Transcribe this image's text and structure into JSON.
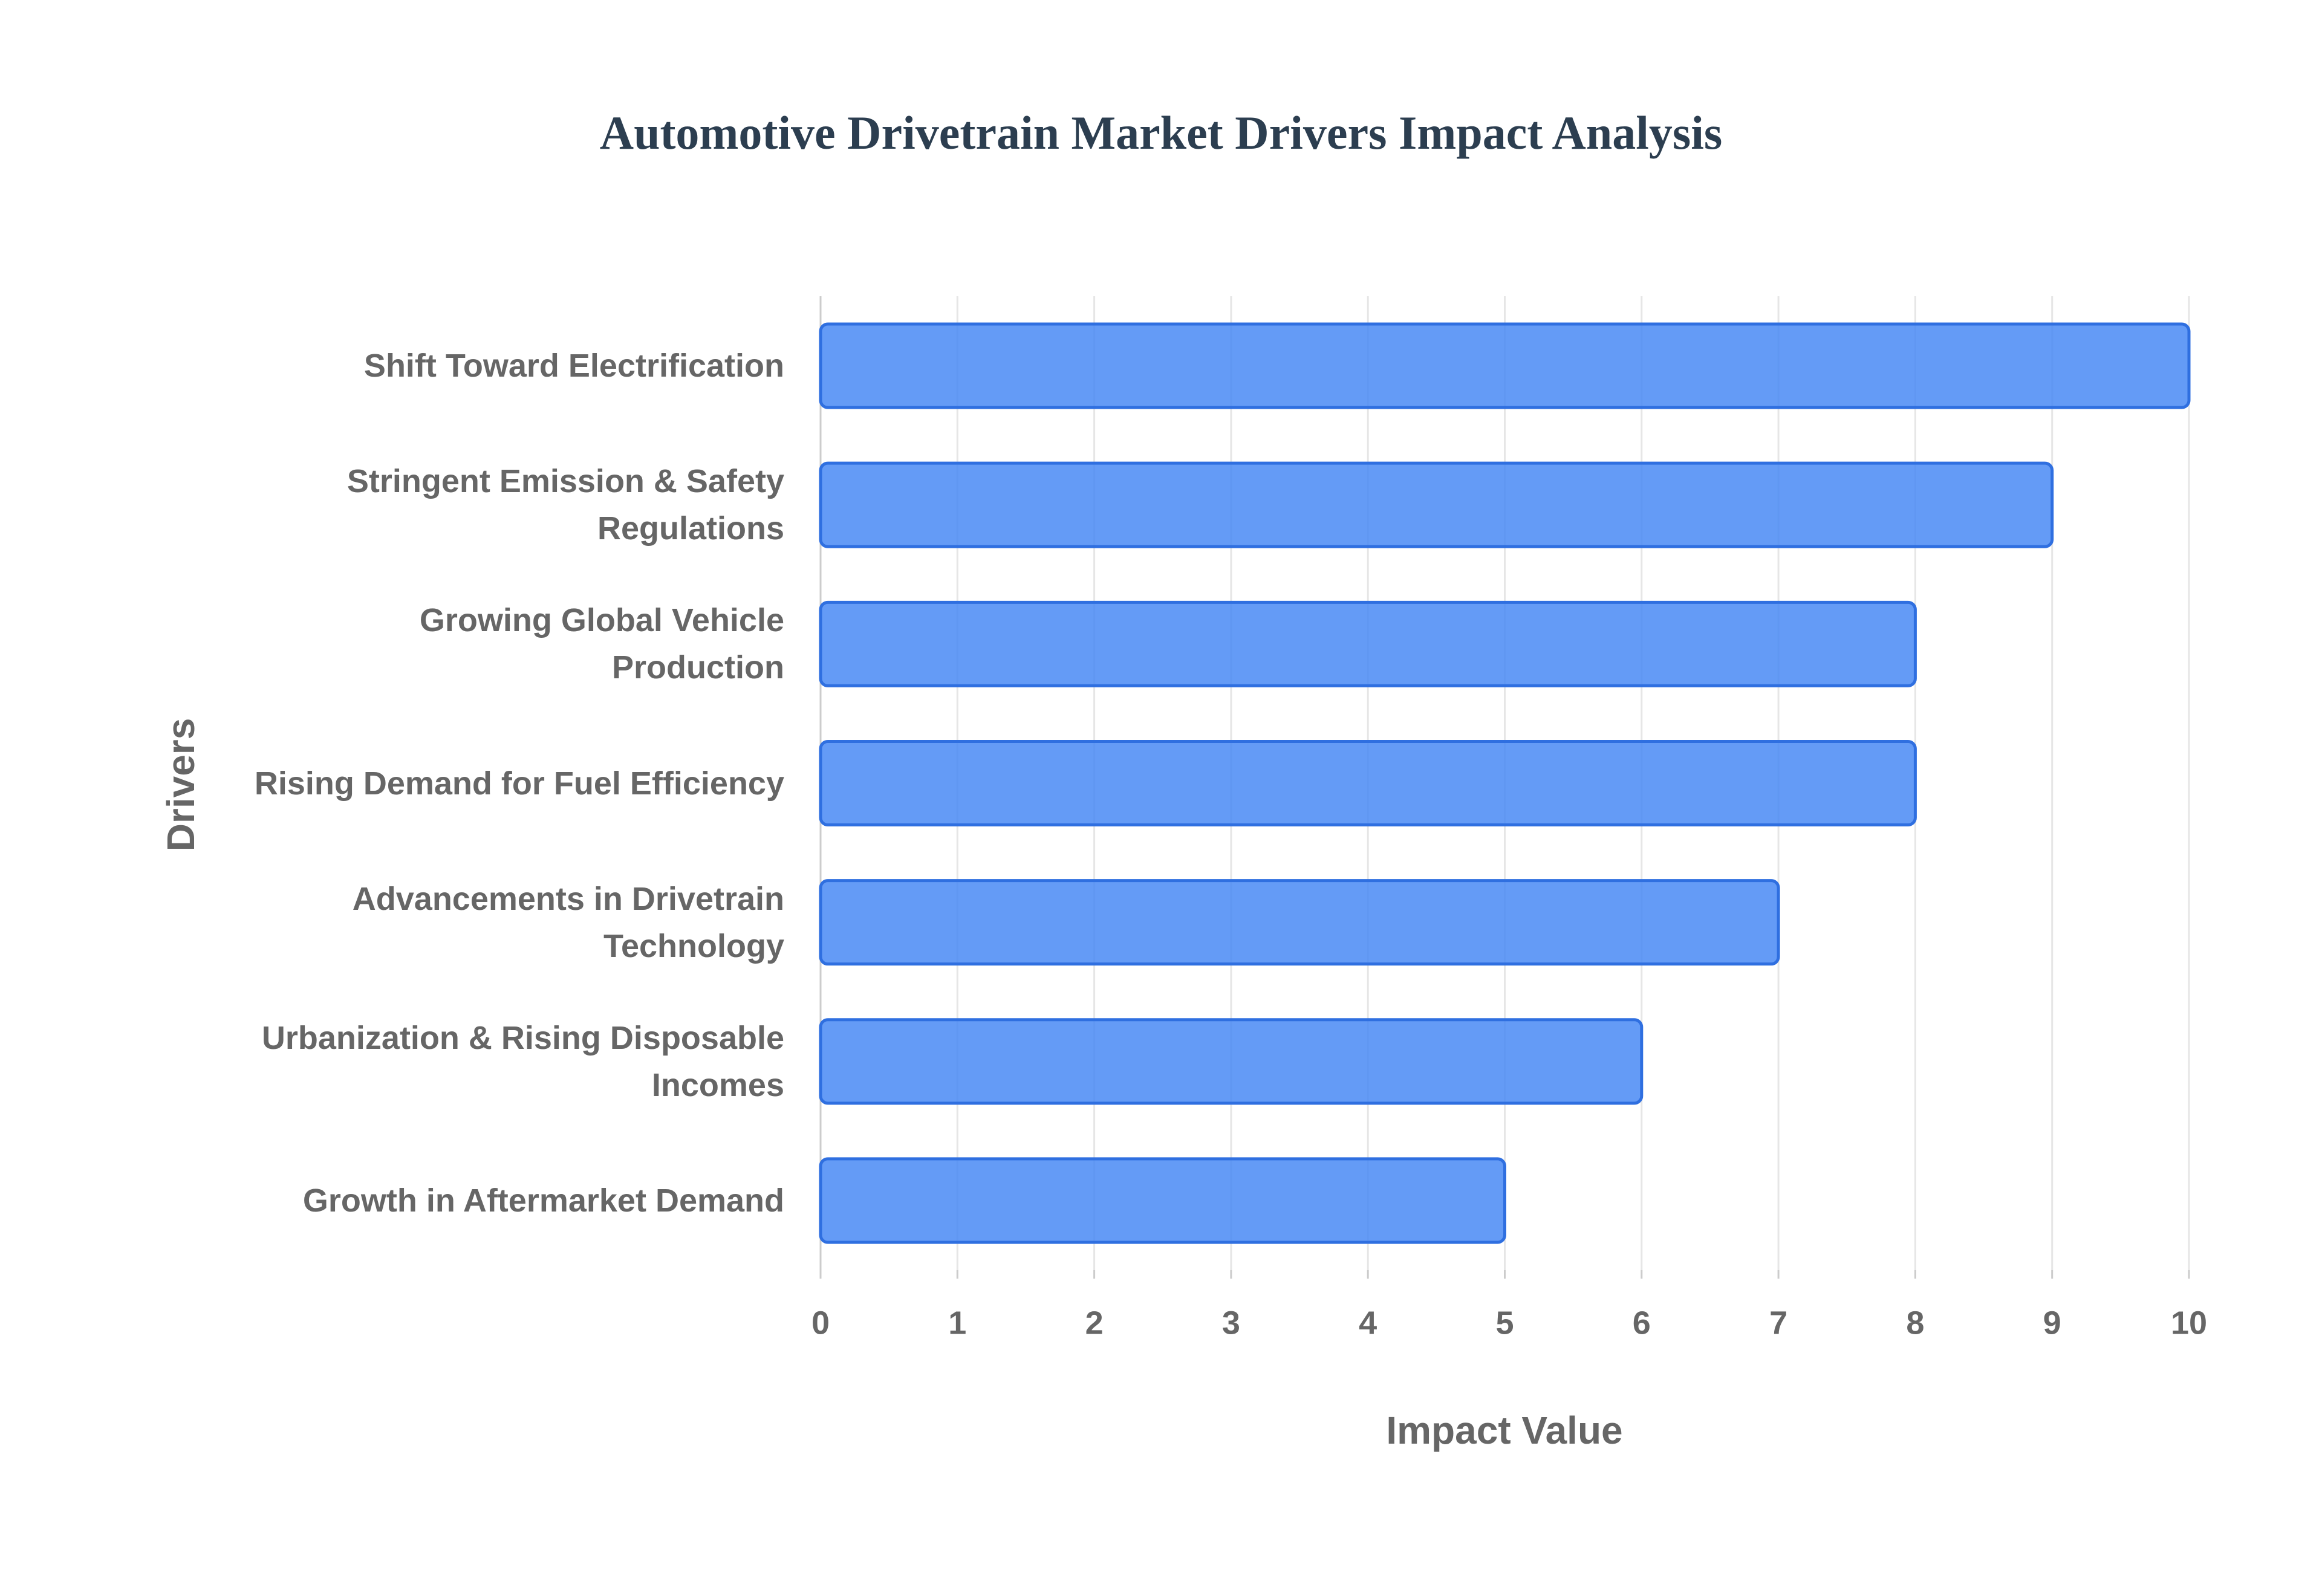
{
  "chart_data": {
    "type": "bar",
    "orientation": "horizontal",
    "title": "Automotive Drivetrain Market Drivers Impact Analysis",
    "x_label": "Impact Value",
    "y_label": "Drivers",
    "categories": [
      "Shift Toward Electrification",
      "Stringent Emission & Safety Regulations",
      "Growing Global Vehicle Production",
      "Rising Demand for Fuel Efficiency",
      "Advancements in Drivetrain Technology",
      "Urbanization & Rising Disposable Incomes",
      "Growth in Aftermarket Demand"
    ],
    "values": [
      10,
      9,
      8,
      8,
      7,
      6,
      5
    ],
    "color": "#4285f4",
    "xlim": [
      0,
      10
    ],
    "xticks": [
      0,
      1,
      2,
      3,
      4,
      5,
      6,
      7,
      8,
      9,
      10
    ],
    "grid": true
  }
}
